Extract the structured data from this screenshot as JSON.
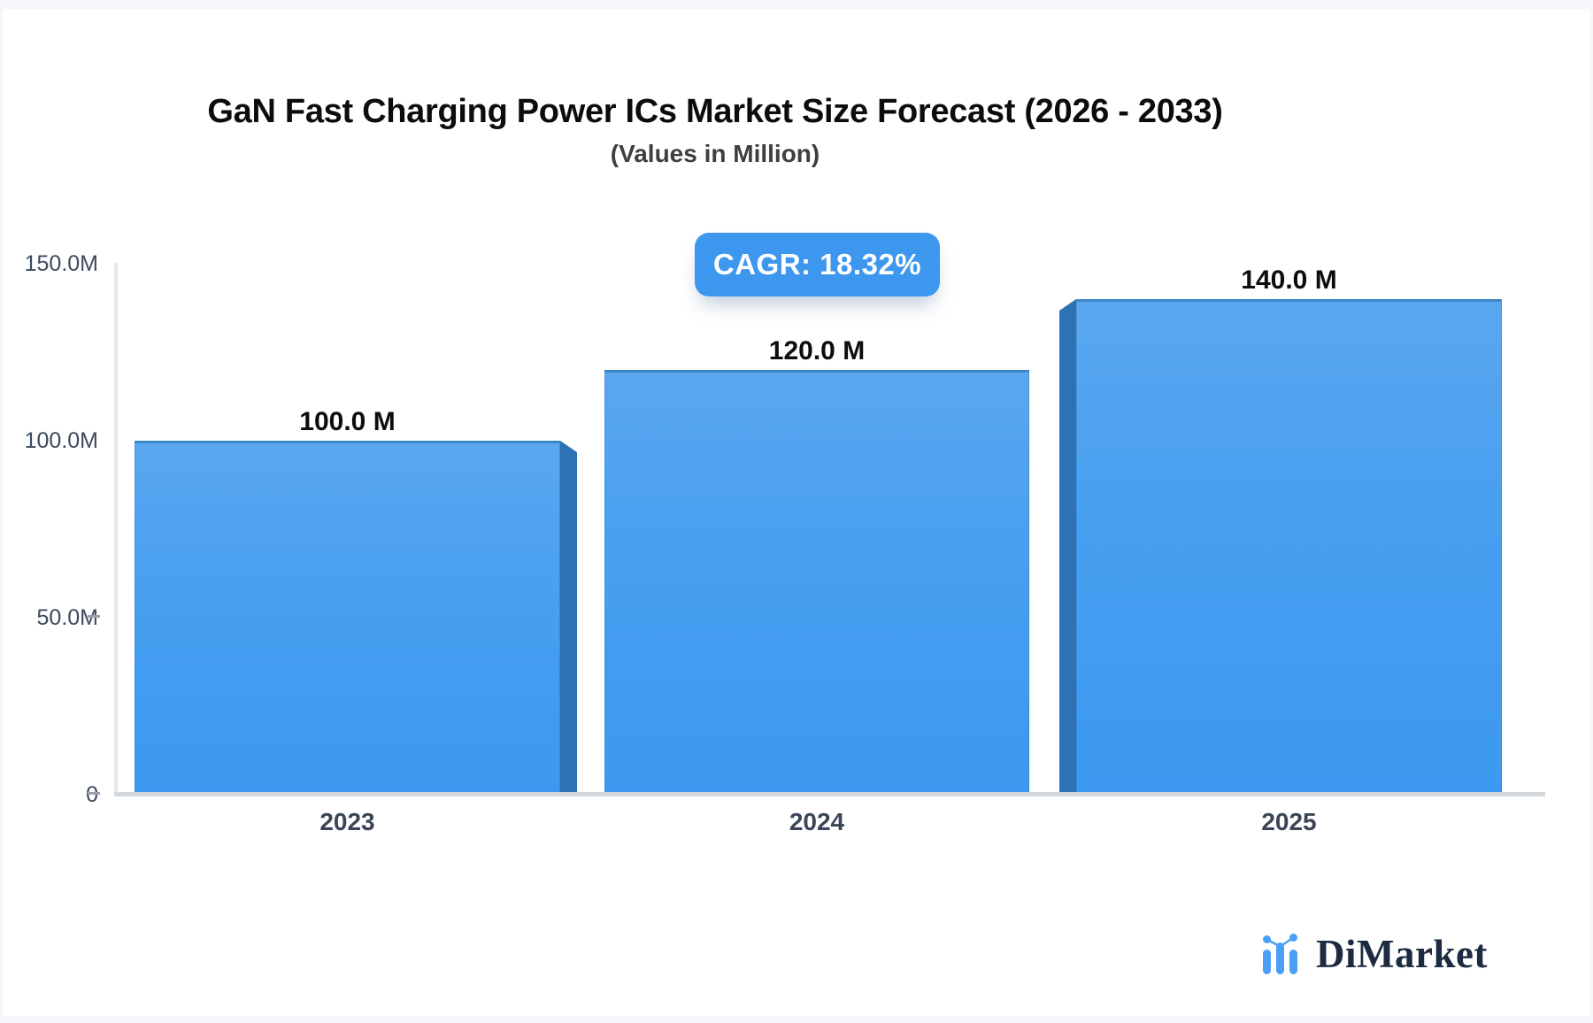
{
  "chart_data": {
    "type": "bar",
    "title": "GaN Fast Charging Power ICs Market Size Forecast (2026 - 2033)",
    "subtitle": "(Values in Million)",
    "cagr_label": "CAGR: 18.32%",
    "cagr_value_pct": 18.32,
    "categories": [
      "2023",
      "2024",
      "2025"
    ],
    "values": [
      100.0,
      120.0,
      140.0
    ],
    "bar_labels": [
      "100.0 M",
      "120.0 M",
      "140.0 M"
    ],
    "unit": "Million",
    "y_ticks": [
      "150.0M",
      "100.0M",
      "50.0M",
      "0"
    ],
    "y_tick_values": [
      150,
      100,
      50,
      0
    ],
    "ylim": [
      0,
      150
    ],
    "grid": "off",
    "legend": "none",
    "bar_color_top": "#5aa7f0",
    "bar_color_bottom": "#3c99ef",
    "bar_side_color": "#2c72b4",
    "bar_top_edge_color": "#3e86c9"
  },
  "badge": {
    "background": "#3e97ef",
    "text_color": "#ffffff"
  },
  "branding": {
    "logo_text": "DiMarket",
    "logo_icon": "bar-chart-trend-icon",
    "logo_icon_color": "#4aa0f7",
    "logo_text_color": "#1c2a42"
  }
}
